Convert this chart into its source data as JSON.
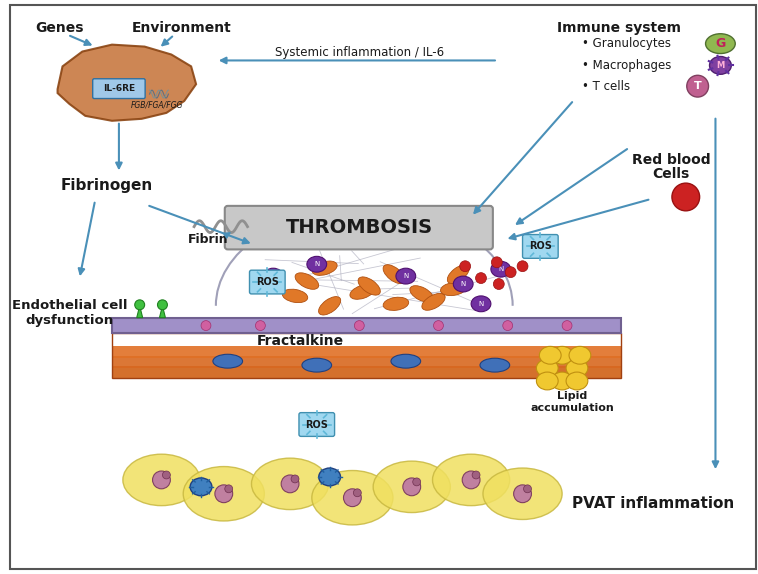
{
  "bg_color": "#ffffff",
  "border_color": "#555555",
  "liver_color": "#c87941",
  "liver_outline": "#8b4513",
  "arrow_color": "#4a90b8",
  "text_color": "#1a1a1a",
  "il6re_box_color": "#a0c8e8",
  "ros_color": "#a0d8f0",
  "fibrin_color": "#a0a0b0",
  "labels": {
    "genes": "Genes",
    "environment": "Environment",
    "fibrinogen": "Fibrinogen",
    "thrombosis": "THROMBOSIS",
    "fibrin": "Fibrin",
    "fractalkine": "Fractalkine",
    "endothelial1": "Endothelial cell",
    "endothelial2": "dysfunction",
    "lipid1": "Lipid",
    "lipid2": "accumulation",
    "pvat": "PVAT inflammation",
    "red_blood1": "Red blood",
    "red_blood2": "Cells",
    "systemic": "Systemic inflammation / IL-6",
    "immune_system": "Immune system",
    "granulocytes": "Granulocytes",
    "macrophages": "Macrophages",
    "t_cells": "T cells",
    "il6re": "IL-6RE",
    "fgb": "FGB/FGA/FGG",
    "ros": "ROS"
  }
}
